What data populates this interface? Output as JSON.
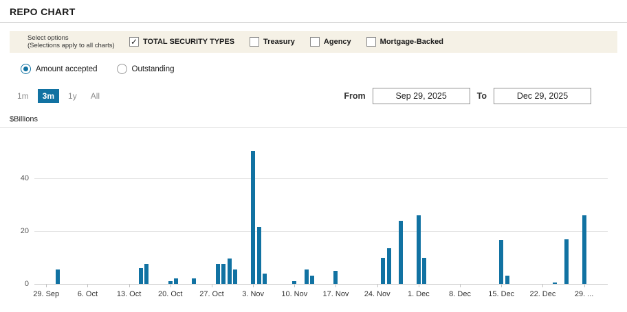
{
  "page": {
    "title": "REPO CHART"
  },
  "options_bar": {
    "label_line1": "Select options",
    "label_line2": "(Selections apply to all charts)",
    "checkboxes": [
      {
        "label": "TOTAL SECURITY TYPES",
        "checked": true
      },
      {
        "label": "Treasury",
        "checked": false
      },
      {
        "label": "Agency",
        "checked": false
      },
      {
        "label": "Mortgage-Backed",
        "checked": false
      }
    ]
  },
  "series_toggle": {
    "radios": [
      {
        "label": "Amount accepted",
        "selected": true
      },
      {
        "label": "Outstanding",
        "selected": false
      }
    ]
  },
  "range_controls": {
    "presets": [
      {
        "label": "1m",
        "selected": false
      },
      {
        "label": "3m",
        "selected": true
      },
      {
        "label": "1y",
        "selected": false
      },
      {
        "label": "All",
        "selected": false
      }
    ],
    "from_label": "From",
    "from_value": "Sep 29, 2025",
    "to_label": "To",
    "to_value": "Dec 29, 2025"
  },
  "chart": {
    "units_label": "$Billions",
    "bar_color": "#1172a2",
    "grid_color": "#e3e3e3",
    "axis_color": "#c8c8c8"
  },
  "chart_data": {
    "type": "bar",
    "title": "",
    "xlabel": "",
    "ylabel": "$Billions",
    "ylim": [
      0,
      56
    ],
    "yticks": [
      0,
      20,
      40
    ],
    "grid": "horizontal",
    "legend": "none",
    "x_axis_day_range": [
      -2,
      95
    ],
    "x_ticks": [
      {
        "label": "29. Sep",
        "day": 0
      },
      {
        "label": "6. Oct",
        "day": 7
      },
      {
        "label": "13. Oct",
        "day": 14
      },
      {
        "label": "20. Oct",
        "day": 21
      },
      {
        "label": "27. Oct",
        "day": 28
      },
      {
        "label": "3. Nov",
        "day": 35
      },
      {
        "label": "10. Nov",
        "day": 42
      },
      {
        "label": "17. Nov",
        "day": 49
      },
      {
        "label": "24. Nov",
        "day": 56
      },
      {
        "label": "1. Dec",
        "day": 63
      },
      {
        "label": "8. Dec",
        "day": 70
      },
      {
        "label": "15. Dec",
        "day": 77
      },
      {
        "label": "22. Dec",
        "day": 84
      },
      {
        "label": "29. ...",
        "day": 91
      }
    ],
    "points": [
      {
        "date": "Oct 1",
        "day": 2,
        "value": 5.5
      },
      {
        "date": "Oct 15",
        "day": 16,
        "value": 6
      },
      {
        "date": "Oct 16",
        "day": 17,
        "value": 7.5
      },
      {
        "date": "Oct 20",
        "day": 21,
        "value": 1
      },
      {
        "date": "Oct 21",
        "day": 22,
        "value": 2
      },
      {
        "date": "Oct 24",
        "day": 25,
        "value": 2
      },
      {
        "date": "Oct 28",
        "day": 29,
        "value": 7.5
      },
      {
        "date": "Oct 29",
        "day": 30,
        "value": 7.5
      },
      {
        "date": "Oct 30",
        "day": 31,
        "value": 9.5
      },
      {
        "date": "Oct 31",
        "day": 32,
        "value": 5.5
      },
      {
        "date": "Nov 3",
        "day": 35,
        "value": 50.5
      },
      {
        "date": "Nov 4",
        "day": 36,
        "value": 21.5
      },
      {
        "date": "Nov 5",
        "day": 37,
        "value": 4
      },
      {
        "date": "Nov 10",
        "day": 42,
        "value": 1
      },
      {
        "date": "Nov 12",
        "day": 44,
        "value": 5.5
      },
      {
        "date": "Nov 13",
        "day": 45,
        "value": 3
      },
      {
        "date": "Nov 17",
        "day": 49,
        "value": 5
      },
      {
        "date": "Nov 25",
        "day": 57,
        "value": 10
      },
      {
        "date": "Nov 26",
        "day": 58,
        "value": 13.5
      },
      {
        "date": "Nov 28",
        "day": 60,
        "value": 24
      },
      {
        "date": "Dec 1",
        "day": 63,
        "value": 26
      },
      {
        "date": "Dec 2",
        "day": 64,
        "value": 10
      },
      {
        "date": "Dec 15",
        "day": 77,
        "value": 16.5
      },
      {
        "date": "Dec 16",
        "day": 78,
        "value": 3
      },
      {
        "date": "Dec 24",
        "day": 86,
        "value": 0.5
      },
      {
        "date": "Dec 26",
        "day": 88,
        "value": 17
      },
      {
        "date": "Dec 29",
        "day": 91,
        "value": 26
      }
    ]
  }
}
